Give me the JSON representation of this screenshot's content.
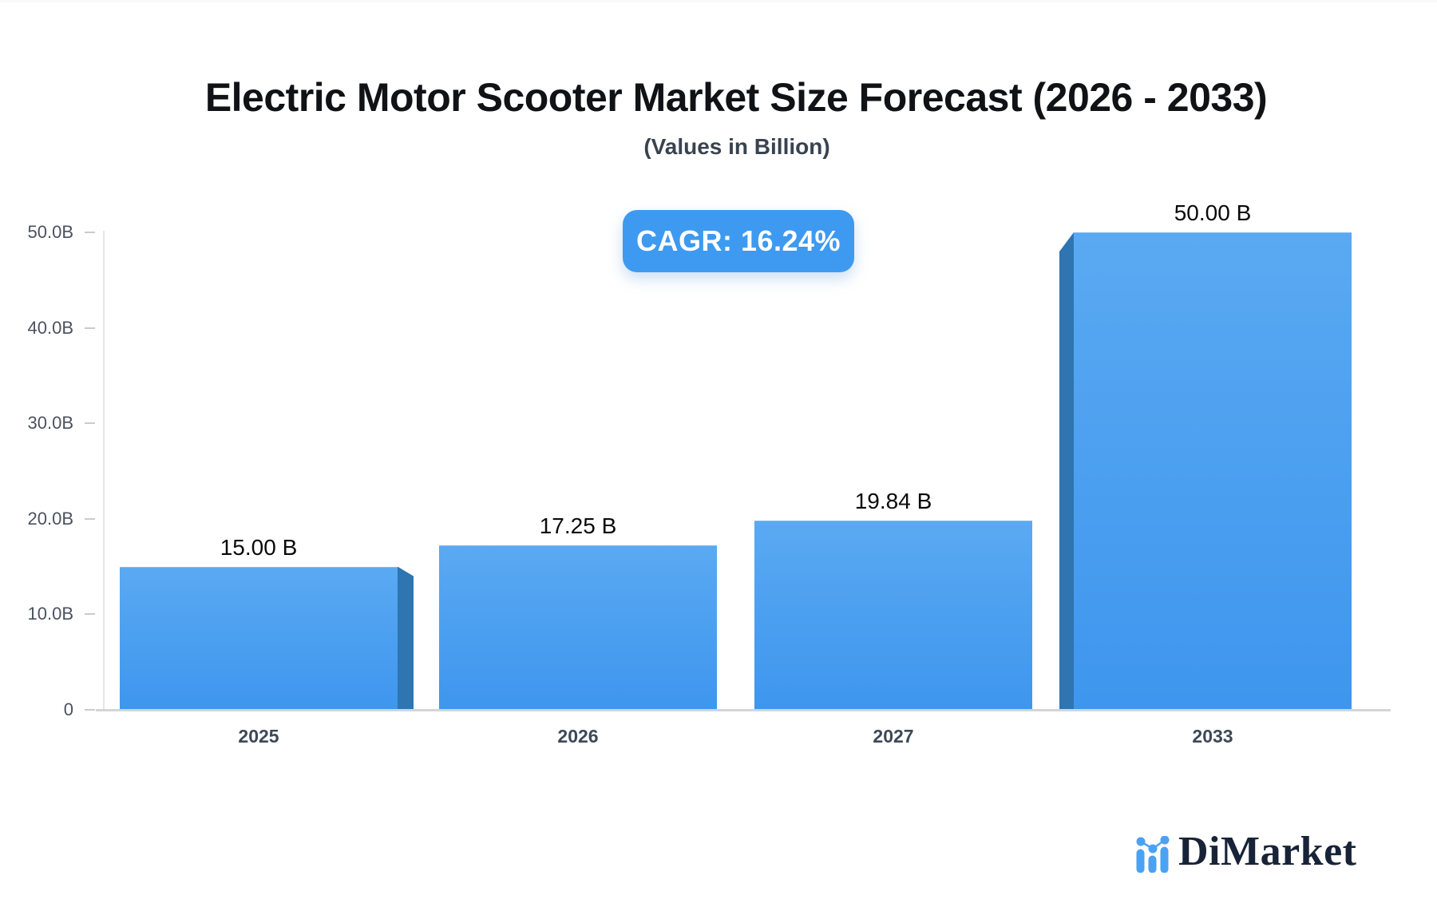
{
  "header": {
    "title": "Electric Motor Scooter Market Size Forecast (2026 - 2033)",
    "subtitle": "(Values in Billion)",
    "cagr_badge": "CAGR: 16.24%"
  },
  "chart_data": {
    "type": "bar",
    "title": "Electric Motor Scooter Market Size Forecast (2026 - 2033)",
    "subtitle": "(Values in Billion)",
    "cagr_percent": "16.24%",
    "categories": [
      "2025",
      "2026",
      "2027",
      "2033"
    ],
    "values": [
      15.0,
      17.25,
      19.84,
      50.0
    ],
    "bar_labels": [
      "15.00 B",
      "17.25 B",
      "19.84 B",
      "50.00 B"
    ],
    "xlabel": "",
    "ylabel": "",
    "ylim": [
      0,
      50
    ],
    "y_ticks": [
      {
        "value": 0,
        "label": "0"
      },
      {
        "value": 10,
        "label": "10.0B"
      },
      {
        "value": 20,
        "label": "20.0B"
      },
      {
        "value": 30,
        "label": "30.0B"
      },
      {
        "value": 40,
        "label": "40.0B"
      },
      {
        "value": 50,
        "label": "50.0B"
      }
    ],
    "grid": false,
    "legend": null
  },
  "colors": {
    "bar_gradient_top": "#5aa9f2",
    "bar_gradient_bottom": "#3e96ee",
    "bar_side": "#2e75b1",
    "badge_bg": "#3d9af0",
    "axis_line": "#d2d5da",
    "y_axis_line": "#e4e6ea",
    "tick_dash": "#c8cbd1",
    "y_label_text": "#4a5260",
    "x_label_text": "#3e4857",
    "value_label_text": "#0a0a0a",
    "title_text": "#101216",
    "subtitle_text": "#39434f",
    "logo_text": "#182338",
    "logo_icon": "#4aa2f3"
  },
  "logo": {
    "text": "DiMarket",
    "icon": "mini-bar-chart-logo-icon"
  }
}
